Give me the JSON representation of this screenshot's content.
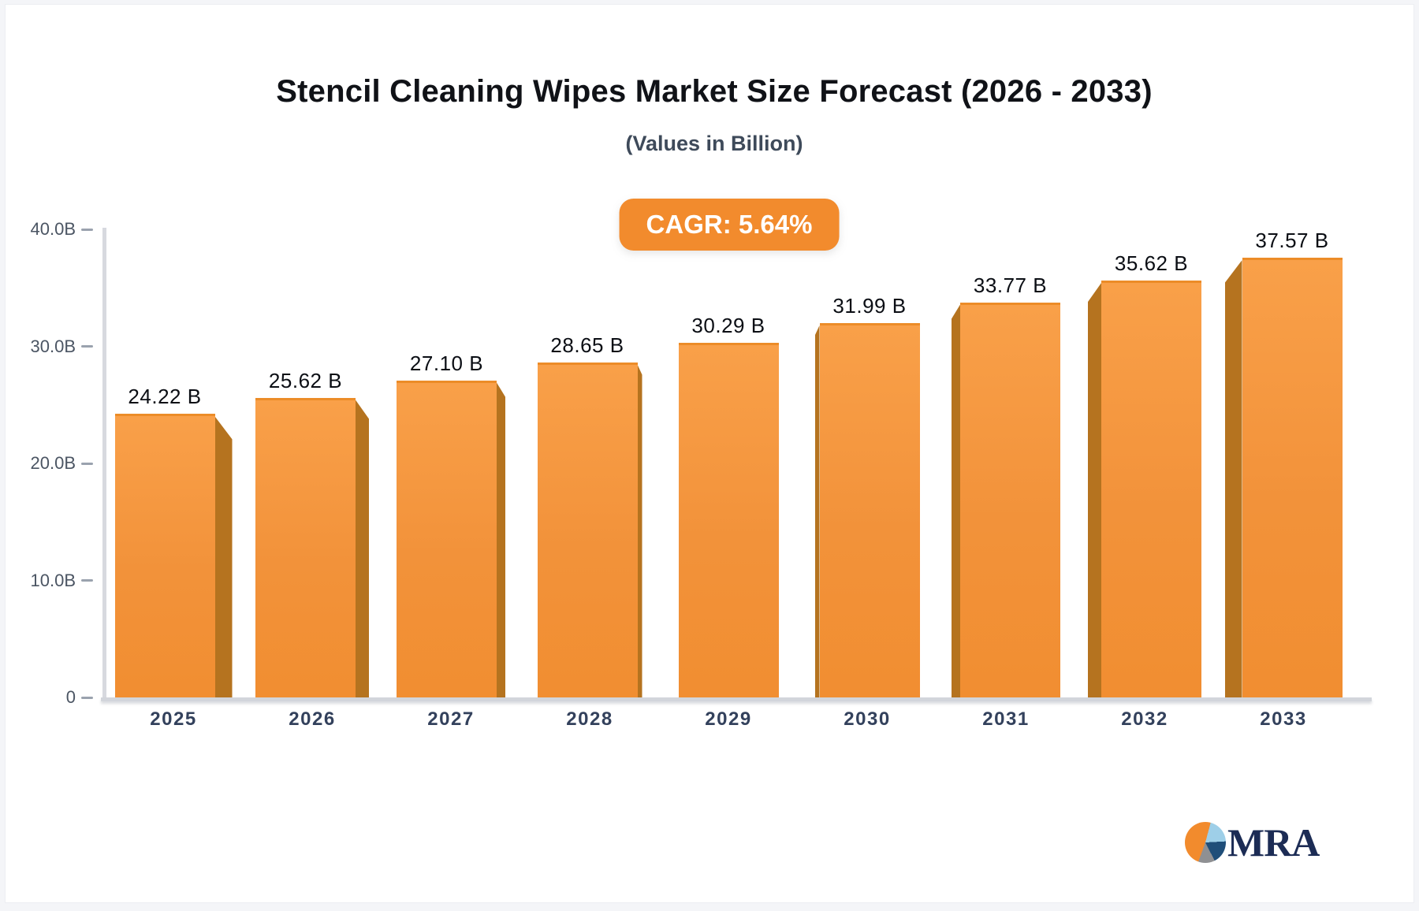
{
  "header": {
    "title": "Stencil Cleaning Wipes Market Size Forecast (2026 - 2033)",
    "subtitle": "(Values in Billion)"
  },
  "badge": {
    "label": "CAGR: 5.64%",
    "color": "#F28B2D"
  },
  "chart_data": {
    "type": "bar",
    "title": "Stencil Cleaning Wipes Market Size Forecast (2026 - 2033)",
    "subtitle": "(Values in Billion)",
    "categories": [
      "2025",
      "2026",
      "2027",
      "2028",
      "2029",
      "2030",
      "2031",
      "2032",
      "2033"
    ],
    "values": [
      24.22,
      25.62,
      27.1,
      28.65,
      30.29,
      31.99,
      33.77,
      35.62,
      37.57
    ],
    "value_labels": [
      "24.22 B",
      "25.62 B",
      "27.10 B",
      "28.65 B",
      "30.29 B",
      "31.99 B",
      "33.77 B",
      "35.62 B",
      "37.57 B"
    ],
    "xlabel": "",
    "ylabel": "",
    "ylim": [
      0,
      40
    ],
    "yticks": [
      {
        "value": 40,
        "label": "40.0B"
      },
      {
        "value": 30,
        "label": "30.0B"
      },
      {
        "value": 20,
        "label": "20.0B"
      },
      {
        "value": 10,
        "label": "10.0B"
      },
      {
        "value": 0,
        "label": "0"
      }
    ],
    "grid": false,
    "legend": "none",
    "bar_face_color": "#F2923A",
    "bar_side_color": "#B5731F",
    "effect": "3d-perspective-center"
  },
  "logo": {
    "text": "MRA",
    "icon": "pie-chart-icon",
    "colors": {
      "orange": "#F28B2D",
      "lightblue": "#9ecfe8",
      "navy": "#1f4e79",
      "gray": "#8f9093",
      "text": "#1c2c55"
    }
  }
}
